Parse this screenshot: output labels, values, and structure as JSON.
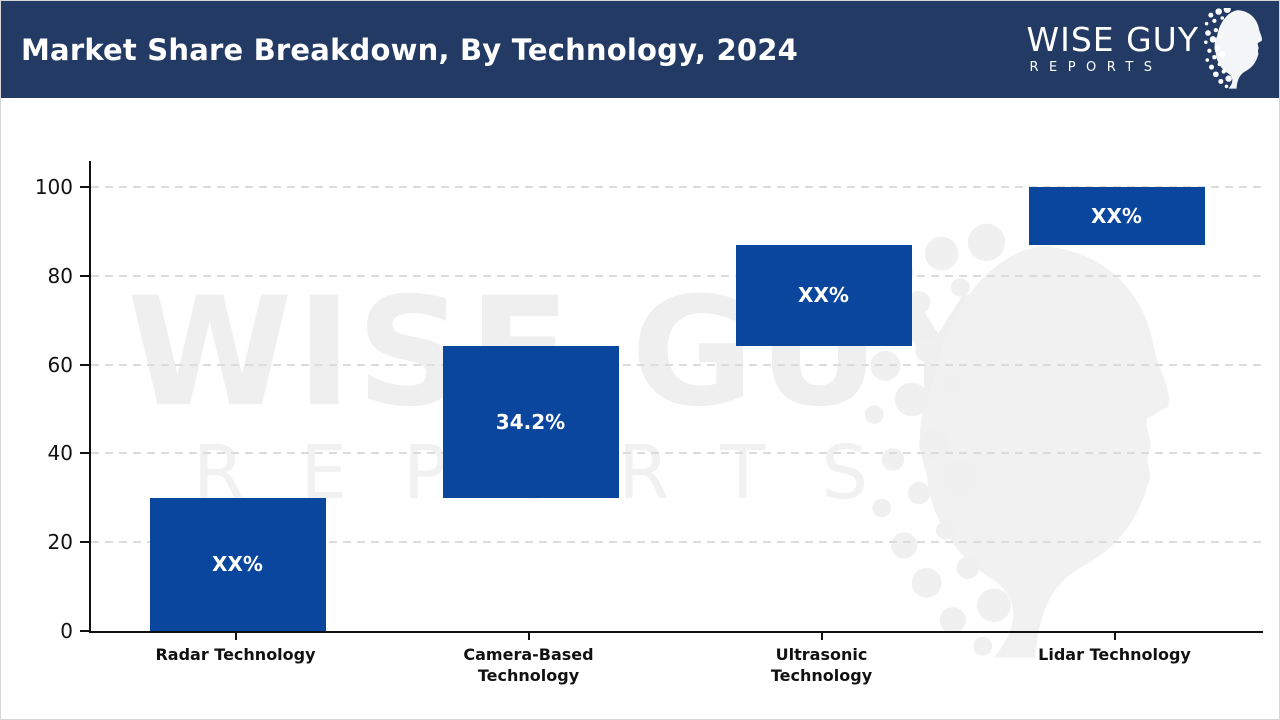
{
  "header": {
    "title": "Market Share Breakdown, By Technology, 2024",
    "logo": {
      "line1": "WISE GUY",
      "line2": "REPORTS"
    }
  },
  "watermark": {
    "line1": "WISE GUY",
    "line2": "REPORTS"
  },
  "colors": {
    "header_bg": "#233a64",
    "bar": "#0a469d",
    "axis": "#111111",
    "grid": "#dcdcdc",
    "tick_text": "#111111",
    "value_label_text": "#ffffff",
    "watermark": "#f0f0f0",
    "page_border": "#d6d6d6"
  },
  "chart_data": {
    "type": "bar",
    "subtype": "waterfall",
    "title": "Market Share Breakdown, By Technology, 2024",
    "categories": [
      "Radar Technology",
      "Camera-Based Technology",
      "Ultrasonic Technology",
      "Lidar Technology"
    ],
    "categories_lines": [
      [
        "Radar Technology"
      ],
      [
        "Camera-Based",
        "Technology"
      ],
      [
        "Ultrasonic",
        "Technology"
      ],
      [
        "Lidar Technology"
      ]
    ],
    "segments": [
      {
        "category": "Radar Technology",
        "start": 0,
        "end": 30,
        "height": 30,
        "display_label": "XX%"
      },
      {
        "category": "Camera-Based Technology",
        "start": 30,
        "end": 64.2,
        "height": 34.2,
        "display_label": "34.2%"
      },
      {
        "category": "Ultrasonic Technology",
        "start": 64.2,
        "end": 87,
        "height": 22.8,
        "display_label": "XX%"
      },
      {
        "category": "Lidar Technology",
        "start": 87,
        "end": 100,
        "height": 13,
        "display_label": "XX%"
      }
    ],
    "y_ticks": [
      0,
      20,
      40,
      60,
      80,
      100
    ],
    "ylim": [
      0,
      100
    ],
    "xlabel": "",
    "ylabel": "",
    "grid": "horizontal-dashed",
    "legend_position": "none"
  }
}
